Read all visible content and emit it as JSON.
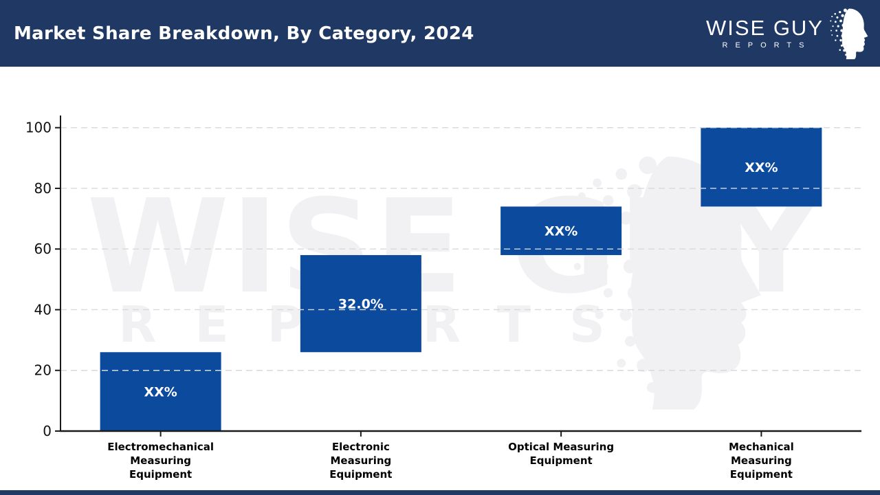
{
  "header": {
    "title": "Market Share Breakdown, By Category, 2024",
    "logo": {
      "line1": "WISE GUY",
      "line2": "REPORTS"
    }
  },
  "watermark": {
    "line1": "WISE GUY",
    "line2": "REPORTS"
  },
  "chart_data": {
    "type": "bar",
    "subtype": "waterfall",
    "title": "Market Share Breakdown, By Category, 2024",
    "categories": [
      "Electromechanical\nMeasuring\nEquipment",
      "Electronic\nMeasuring\nEquipment",
      "Optical Measuring\nEquipment",
      "Mechanical\nMeasuring\nEquipment"
    ],
    "bars": [
      {
        "label": "XX%",
        "start": 0,
        "end": 26,
        "value": 26
      },
      {
        "label": "32.0%",
        "start": 26,
        "end": 58,
        "value": 32
      },
      {
        "label": "XX%",
        "start": 58,
        "end": 74,
        "value": 16
      },
      {
        "label": "XX%",
        "start": 74,
        "end": 100,
        "value": 26
      }
    ],
    "ylim": [
      0,
      100
    ],
    "yticks": [
      0,
      20,
      40,
      60,
      80,
      100
    ],
    "xlabel": "",
    "ylabel": "",
    "grid": "horizontal-dashed",
    "legend": "none",
    "bar_color": "#0c4a9e",
    "label_color": "#ffffff",
    "axis_color": "#1a1a1a",
    "grid_color": "#d9d9d9"
  },
  "colors": {
    "header_bg": "#1f3864",
    "footer_bg": "#1f3864",
    "accent_blue": "#0c4a9e",
    "watermark_gray": "#f1f1f3"
  }
}
